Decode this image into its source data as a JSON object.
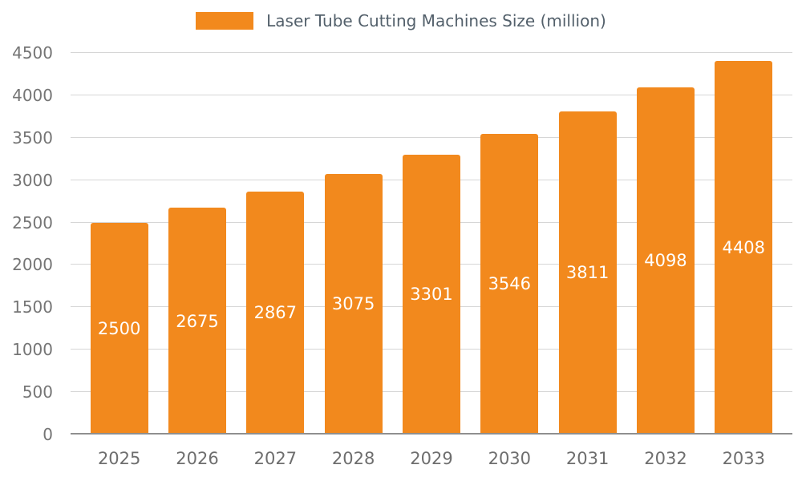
{
  "legend": {
    "label": "Laser Tube Cutting Machines Size (million)"
  },
  "chart_data": {
    "type": "bar",
    "title": "Laser Tube Cutting Machines Size (million)",
    "categories": [
      "2025",
      "2026",
      "2027",
      "2028",
      "2029",
      "2030",
      "2031",
      "2032",
      "2033"
    ],
    "values": [
      2500,
      2675,
      2867,
      3075,
      3301,
      3546,
      3811,
      4098,
      4408
    ],
    "xlabel": "",
    "ylabel": "",
    "ylim": [
      0,
      4500
    ],
    "ytick_step": 500,
    "grid": true,
    "legend_position": "top",
    "bar_color": "#f2891d",
    "value_label_color": "#ffffff",
    "axis_text_color": "#757575"
  }
}
